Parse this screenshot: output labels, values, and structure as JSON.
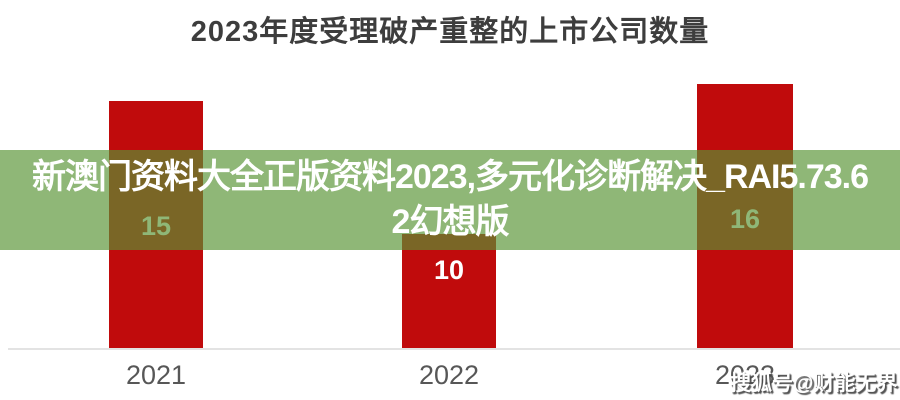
{
  "chart_data": {
    "type": "bar",
    "title": "2023年度受理破产重整的上市公司数量",
    "categories": [
      "2021",
      "2022",
      "2023"
    ],
    "values": [
      15,
      10,
      16
    ],
    "xlabel": "",
    "ylabel": "",
    "gridlines": false,
    "legend": "none",
    "bar_color": "#c00b0c",
    "value_label_color": "#ffffff",
    "axis_line_color": "#e3e3e3",
    "category_label_color": "#575757",
    "title_color": "#3d3d3d",
    "background": "#ffffff"
  },
  "banner": {
    "line1": "新澳门资料大全正版资料2023,多元化诊断解决_RAI5.73.6",
    "line2": "2幻想版",
    "background_color": "rgba(88,148,52,0.67)",
    "text_color": "#ffffff"
  },
  "watermark": {
    "text": "搜狐号@财能无界"
  }
}
